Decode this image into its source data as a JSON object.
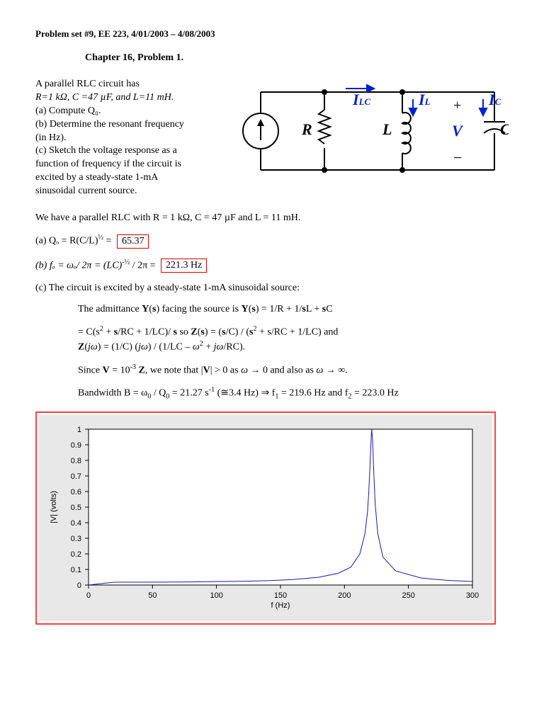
{
  "header": "Problem set #9, EE 223, 4/01/2003 – 4/08/2003",
  "chapter": "Chapter 16, Problem 1.",
  "problem": {
    "intro": "A parallel RLC circuit has",
    "params": "R=1 kΩ, C =47 µF, and L=11 mH.",
    "a": "(a) Compute Q₀.",
    "b": "(b) Determine the resonant frequency",
    "b2": "(in Hz).",
    "c": "(c) Sketch the voltage response as a",
    "c2": "function of frequency if the circuit is",
    "c3": "excited by a steady-state 1-mA",
    "c4": "sinusoidal current source."
  },
  "circuit": {
    "labels": {
      "ILC": "I",
      "ILCsub": "LC",
      "IL": "I",
      "ILsub": "L",
      "IC": "I",
      "ICsub": "C",
      "R": "R",
      "L": "L",
      "V": "V",
      "C": "C",
      "plus": "+",
      "minus": "−"
    },
    "colors": {
      "wire": "#000000",
      "label_blue": "#0020d0",
      "arrow_blue": "#0020d0"
    },
    "stroke_width": 2
  },
  "restate": "We have a parallel RLC with R = 1 kΩ, C = 47 µF and L = 11 mH.",
  "part_a": {
    "formula": "(a) Qₒ = R(C/L)",
    "exp": "½",
    "equals": "  =  ",
    "answer": "65.37"
  },
  "part_b": {
    "formula_pre": "(b) fₒ  =  ωₒ/ 2π  = (LC)",
    "exp": "-½",
    "formula_post": " / 2π   =  ",
    "answer": "221.3 Hz"
  },
  "part_c_intro": "(c) The circuit is excited by a steady-state 1-mA sinusoidal source:",
  "admittance": "The admittance Y(s) facing the source is Y(s) = 1/R + 1/sL + sC",
  "zline1_pre": "= C(s",
  "zline1_sup": "2",
  "zline1_mid": " + s/RC + 1/LC)/ s   so Z(s) = (s/C) / (s",
  "zline1_sup2": "2",
  "zline1_post": " + s/RC + 1/LC) and",
  "zline2_pre": "Z(jω) = (1/C) (jω) / (1/LC – ω",
  "zline2_sup": "2",
  "zline2_post": " + jω/RC).",
  "since_pre": "Since V = 10",
  "since_sup": "-3",
  "since_post": " Z, we note that |V| > 0 as ω → 0 and also as ω → ∞.",
  "bandwidth_pre": "Bandwidth B = ω",
  "bw_sub1": "0",
  "bandwidth_mid": " / Q",
  "bw_sub2": "0",
  "bandwidth_mid2": " = 21.27 s",
  "bw_sup": "-1",
  "bandwidth_post": " (≅3.4 Hz)   ⇒   f",
  "bw_sub3": "1",
  "bandwidth_post2": " = 219.6 Hz and f",
  "bw_sub4": "2",
  "bandwidth_post3": " = 223.0 Hz",
  "chart": {
    "type": "line",
    "xlabel": "f (Hz)",
    "ylabel": "|V| (volts)",
    "xlim": [
      0,
      300
    ],
    "ylim": [
      0,
      1
    ],
    "xticks": [
      0,
      50,
      100,
      150,
      200,
      250,
      300
    ],
    "yticks": [
      0,
      0.1,
      0.2,
      0.3,
      0.4,
      0.5,
      0.6,
      0.7,
      0.8,
      0.9,
      1
    ],
    "line_color": "#1818b0",
    "line_width": 1,
    "background_color": "#ffffff",
    "grid_color": "none",
    "plot_bg": "#ffffff",
    "outer_bg": "#e8e8e8",
    "label_fontsize": 11,
    "tick_fontsize": 11,
    "peak_freq": 221.3,
    "peak_value": 1.0,
    "q": 65.37,
    "data": [
      [
        0,
        0
      ],
      [
        20,
        0.018
      ],
      [
        40,
        0.018
      ],
      [
        60,
        0.019
      ],
      [
        80,
        0.02
      ],
      [
        100,
        0.022
      ],
      [
        120,
        0.024
      ],
      [
        140,
        0.028
      ],
      [
        160,
        0.035
      ],
      [
        180,
        0.05
      ],
      [
        195,
        0.075
      ],
      [
        205,
        0.115
      ],
      [
        212,
        0.2
      ],
      [
        216,
        0.33
      ],
      [
        218,
        0.47
      ],
      [
        219,
        0.6
      ],
      [
        220,
        0.78
      ],
      [
        221,
        0.97
      ],
      [
        221.3,
        1.0
      ],
      [
        222,
        0.92
      ],
      [
        223,
        0.7
      ],
      [
        224,
        0.52
      ],
      [
        226,
        0.33
      ],
      [
        230,
        0.18
      ],
      [
        240,
        0.09
      ],
      [
        260,
        0.045
      ],
      [
        280,
        0.03
      ],
      [
        300,
        0.023
      ]
    ]
  }
}
